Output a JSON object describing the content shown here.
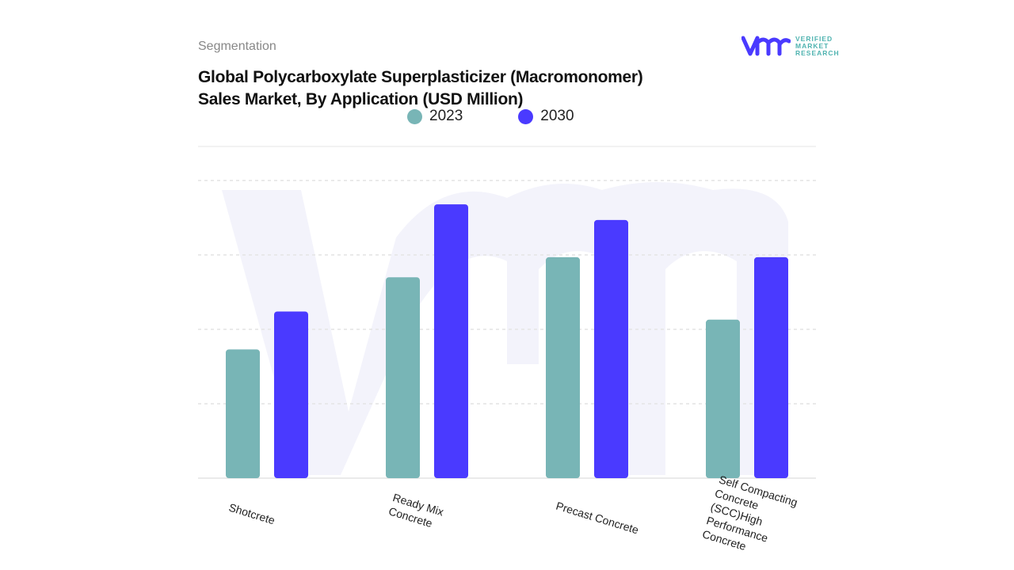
{
  "header": {
    "section": "Segmentation",
    "title_line1": "Global Polycarboxylate Superplasticizer (Macromonomer)",
    "title_line2": "Sales Market, By Application (USD Million)"
  },
  "logo": {
    "line1": "VERIFIED",
    "line2": "MARKET",
    "line3": "RESEARCH",
    "brand_color": "#4a3aff",
    "text_color": "#4fb3b0"
  },
  "chart_data": {
    "type": "bar",
    "title": "Global Polycarboxylate Superplasticizer (Macromonomer) Sales Market, By Application (USD Million)",
    "categories": [
      "Shotcrete",
      "Ready Mix Concrete",
      "Precast Concrete",
      "Self Compacting Concrete (SCC)High Performance Concrete"
    ],
    "series": [
      {
        "name": "2023",
        "color": "#78b5b6",
        "values": [
          1.73,
          2.7,
          2.97,
          2.13
        ]
      },
      {
        "name": "2030",
        "color": "#4a3aff",
        "values": [
          2.24,
          3.68,
          3.47,
          2.97
        ]
      }
    ],
    "xlabel": "",
    "ylabel": "",
    "ylim": [
      0,
      4
    ],
    "grid": true,
    "legend": "top-center"
  }
}
